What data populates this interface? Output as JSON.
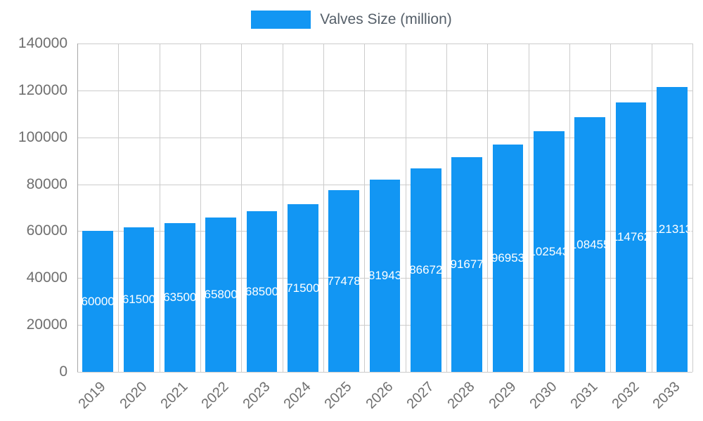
{
  "legend": {
    "label": "Valves Size (million)"
  },
  "colors": {
    "bar": "#1296f3",
    "grid": "#cccccc",
    "axis_line": "#a6a6a6",
    "tick_text": "#6f6f6f",
    "legend_text": "#555f69",
    "bar_label_text": "#ffffff",
    "background": "#ffffff"
  },
  "chart_data": {
    "type": "bar",
    "title": "",
    "legend": "Valves Size (million)",
    "legend_position": "top",
    "xlabel": "",
    "ylabel": "",
    "categories": [
      "2019",
      "2020",
      "2021",
      "2022",
      "2023",
      "2024",
      "2025",
      "2026",
      "2027",
      "2028",
      "2029",
      "2030",
      "2031",
      "2032",
      "2033"
    ],
    "values": [
      60000,
      61500,
      63500,
      65800,
      68500,
      71500,
      77478,
      81943,
      86672,
      91677,
      96953,
      102543,
      108455,
      114762,
      121313
    ],
    "bar_labels_visible": true,
    "ylim": [
      0,
      140000
    ],
    "yticks": [
      0,
      20000,
      40000,
      60000,
      80000,
      100000,
      120000,
      140000
    ],
    "grid": true
  }
}
